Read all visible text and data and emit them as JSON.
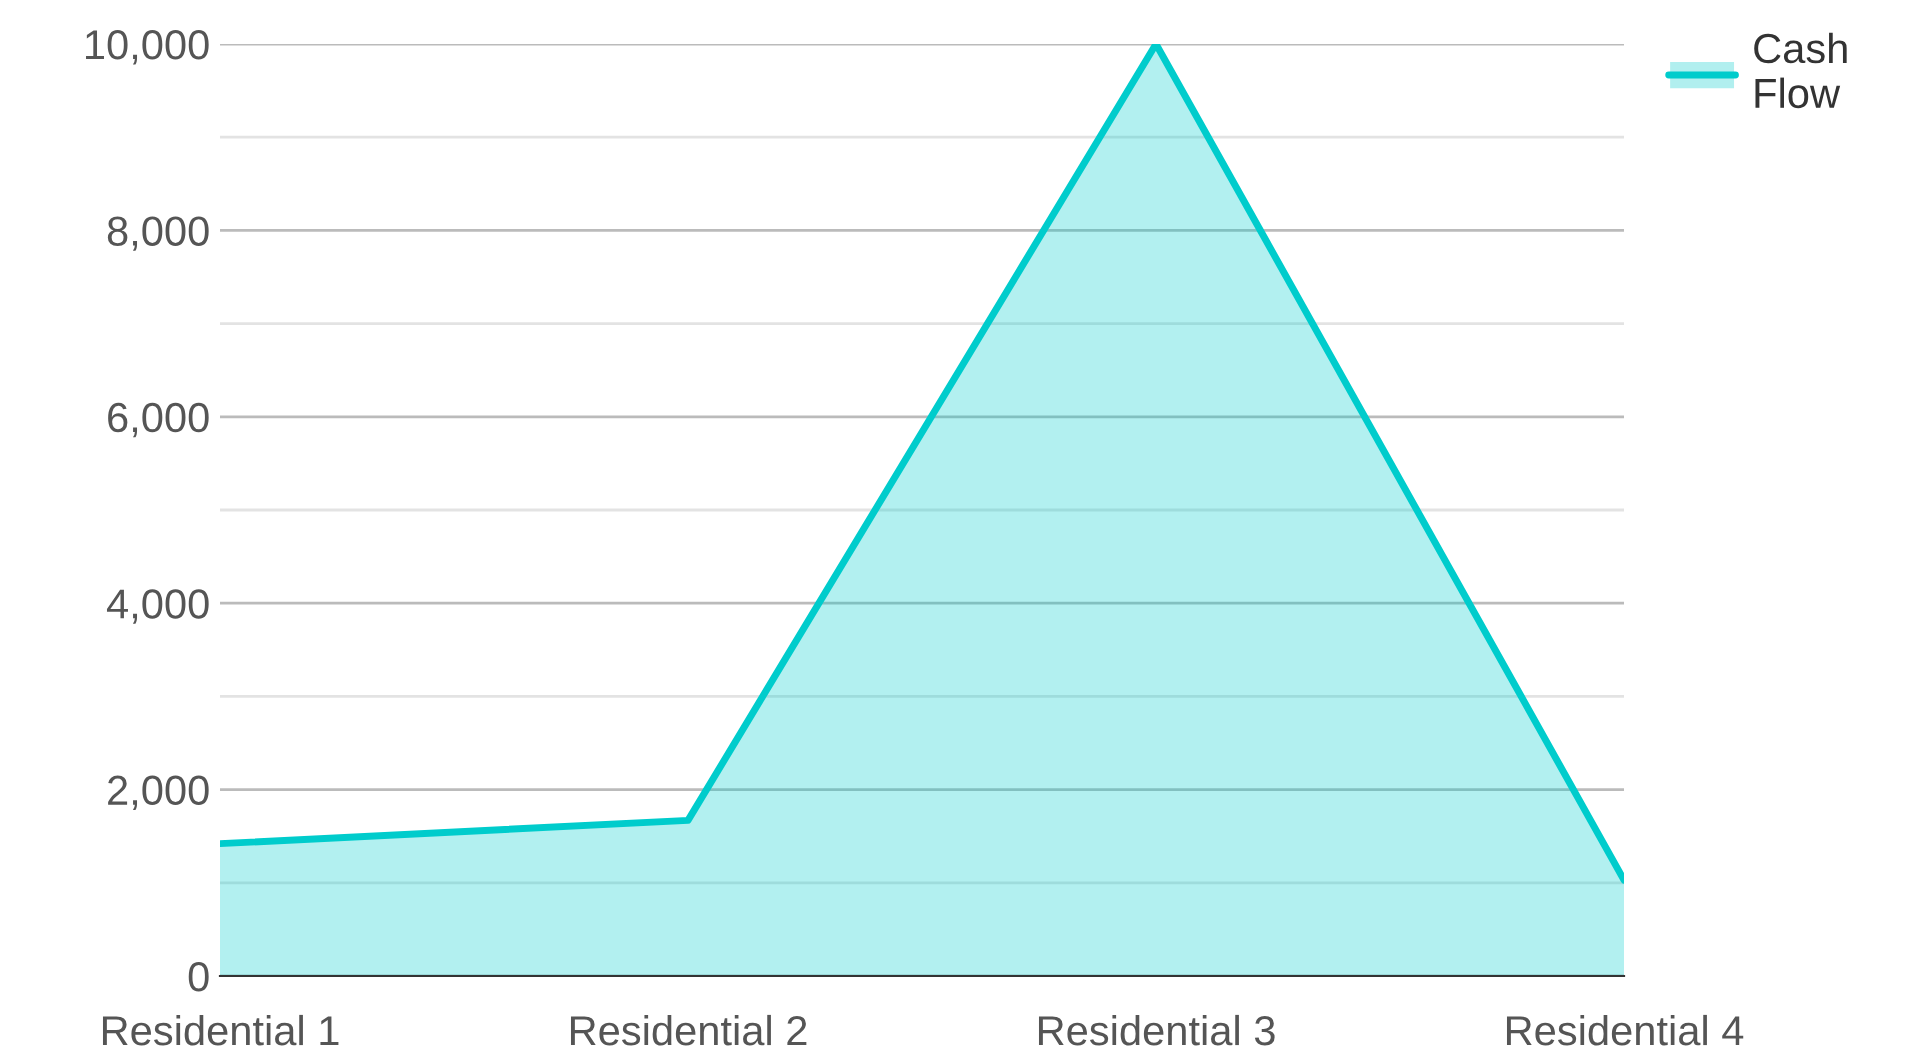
{
  "chart_data": {
    "type": "area",
    "categories": [
      "Residential 1",
      "Residential 2",
      "Residential 3",
      "Residential 4"
    ],
    "series": [
      {
        "name": "Cash Flow",
        "color": "#00cccc",
        "values": [
          1420,
          1670,
          10000,
          1030
        ]
      }
    ],
    "ylim": [
      0,
      10000
    ],
    "yticks": [
      0,
      {
        "value": 1000,
        "label": null
      },
      {
        "value": 2000,
        "label": "2,000"
      },
      {
        "value": 3000,
        "label": null
      },
      {
        "value": 4000,
        "label": "4,000"
      },
      {
        "value": 5000,
        "label": null
      },
      {
        "value": 6000,
        "label": "6,000"
      },
      {
        "value": 7000,
        "label": null
      },
      {
        "value": 8000,
        "label": "8,000"
      },
      {
        "value": 9000,
        "label": null
      },
      {
        "value": 10000,
        "label": "10,000"
      }
    ],
    "grid": "y",
    "legend": "top right"
  }
}
